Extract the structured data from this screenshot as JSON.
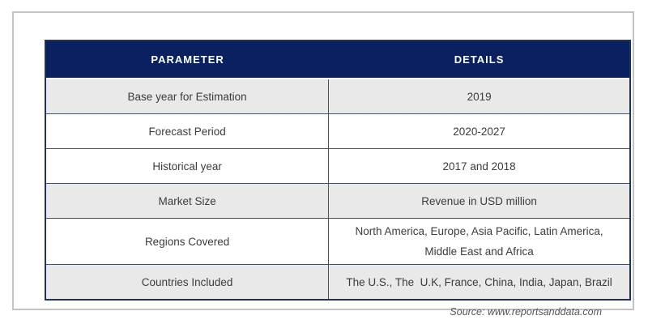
{
  "table": {
    "headers": {
      "parameter": "PARAMETER",
      "details": "DETAILS"
    },
    "rows": [
      {
        "parameter": "Base year for Estimation",
        "details": "2019"
      },
      {
        "parameter": "Forecast Period",
        "details": "2020-2027"
      },
      {
        "parameter": "Historical year",
        "details": "2017 and 2018"
      },
      {
        "parameter": "Market Size",
        "details": "Revenue in USD million"
      },
      {
        "parameter": "Regions Covered",
        "details": "North America, Europe, Asia Pacific, Latin America, Middle East and Africa"
      },
      {
        "parameter": "Countries Included",
        "details": "The U.S., The  U.K, France, China, India, Japan, Brazil"
      }
    ]
  },
  "source": {
    "text": "Source: www.reportsanddata.com"
  },
  "colors": {
    "header_bg": "#0a2161",
    "header_text": "#ffffff",
    "shaded_row_bg": "#e9e9e9",
    "inner_border": "#46526d",
    "table_border": "#20335f",
    "card_border": "#c3c3c3",
    "cell_text": "#3c3c3c",
    "source_text": "#565656"
  }
}
